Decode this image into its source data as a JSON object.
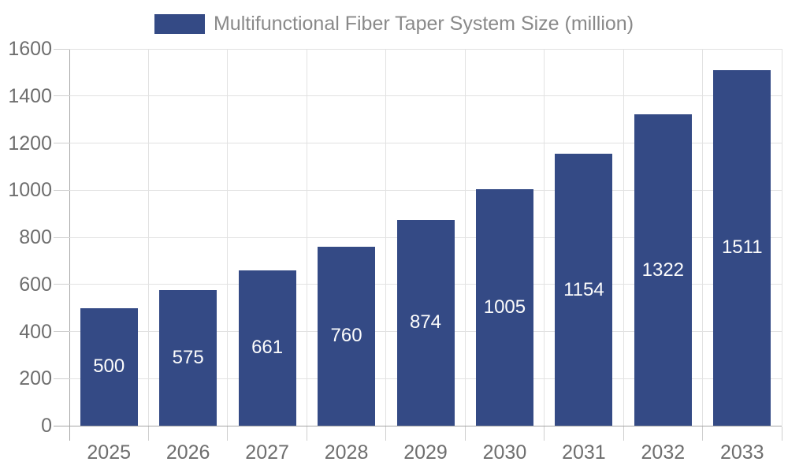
{
  "chart_data": {
    "type": "bar",
    "title": "Multifunctional Fiber Taper System Size (million)",
    "legend": {
      "label": "Multifunctional Fiber Taper System Size (million)",
      "position": "top-center"
    },
    "categories": [
      "2025",
      "2026",
      "2027",
      "2028",
      "2029",
      "2030",
      "2031",
      "2032",
      "2033"
    ],
    "values": [
      500,
      575,
      661,
      760,
      874,
      1005,
      1154,
      1322,
      1511
    ],
    "value_labels_shown": true,
    "xlabel": "",
    "ylabel": "",
    "ylim": [
      0,
      1600
    ],
    "ytick_step": 200,
    "yticks": [
      0,
      200,
      400,
      600,
      800,
      1000,
      1200,
      1400,
      1600
    ],
    "grid": true,
    "colors": {
      "bar": "#344a85",
      "value_label": "#fcfcfc",
      "axis_line": "#a6a6a6",
      "gridline": "#e2e2e2",
      "tick_mark": "#cfcfcf",
      "tick_label": "#6e6e6e",
      "legend_text": "#898989",
      "background": "#ffffff"
    }
  }
}
